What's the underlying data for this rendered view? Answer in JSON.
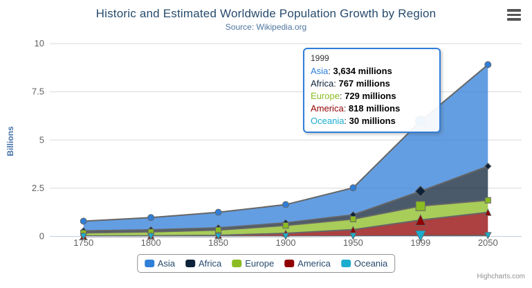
{
  "header": {
    "title": "Historic and Estimated Worldwide Population Growth by Region",
    "subtitle": "Source: Wikipedia.org"
  },
  "credits": "Highcharts.com",
  "chart_data": {
    "type": "area",
    "stacking": "normal",
    "title": "Historic and Estimated Worldwide Population Growth by Region",
    "subtitle": "Source: Wikipedia.org",
    "categories": [
      "1750",
      "1800",
      "1850",
      "1900",
      "1950",
      "1999",
      "2050"
    ],
    "xlabel": "",
    "ylabel": "Billions",
    "ylim": [
      0,
      10
    ],
    "yticks": [
      0,
      2.5,
      5,
      7.5,
      10
    ],
    "values_unit": "millions",
    "grid": "horizontal",
    "legend_position": "bottom",
    "series": [
      {
        "name": "Asia",
        "color": "#2f7ed8",
        "marker": "circle",
        "values": [
          502,
          635,
          809,
          947,
          1402,
          3634,
          5268
        ]
      },
      {
        "name": "Africa",
        "color": "#0d233a",
        "marker": "diamond",
        "values": [
          106,
          107,
          111,
          133,
          221,
          767,
          1766
        ]
      },
      {
        "name": "Europe",
        "color": "#8bbc21",
        "marker": "square",
        "values": [
          163,
          203,
          276,
          408,
          547,
          729,
          628
        ]
      },
      {
        "name": "America",
        "color": "#910000",
        "marker": "triangle",
        "values": [
          18,
          31,
          54,
          156,
          339,
          818,
          1201
        ]
      },
      {
        "name": "Oceania",
        "color": "#1aadce",
        "marker": "triangle-down",
        "values": [
          2,
          2,
          2,
          6,
          13,
          30,
          46
        ]
      }
    ],
    "hover_index": 5,
    "line_color": "#666666",
    "fill_opacity": 0.75,
    "axis_line_color": "#C0D0E0",
    "grid_color": "#D8D8D8",
    "label_color": "#606060"
  },
  "tooltip": {
    "header": "1999",
    "border_color": "#2f7ed8",
    "rows": [
      {
        "label": "Asia",
        "value": "3,634 millions",
        "color": "#2f7ed8"
      },
      {
        "label": "Africa",
        "value": "767 millions",
        "color": "#0d233a"
      },
      {
        "label": "Europe",
        "value": "729 millions",
        "color": "#8bbc21"
      },
      {
        "label": "America",
        "value": "818 millions",
        "color": "#910000"
      },
      {
        "label": "Oceania",
        "value": "30 millions",
        "color": "#1aadce"
      }
    ]
  },
  "legend": {
    "items": [
      {
        "label": "Asia",
        "color": "#2f7ed8"
      },
      {
        "label": "Africa",
        "color": "#0d233a"
      },
      {
        "label": "Europe",
        "color": "#8bbc21"
      },
      {
        "label": "America",
        "color": "#910000"
      },
      {
        "label": "Oceania",
        "color": "#1aadce"
      }
    ]
  }
}
